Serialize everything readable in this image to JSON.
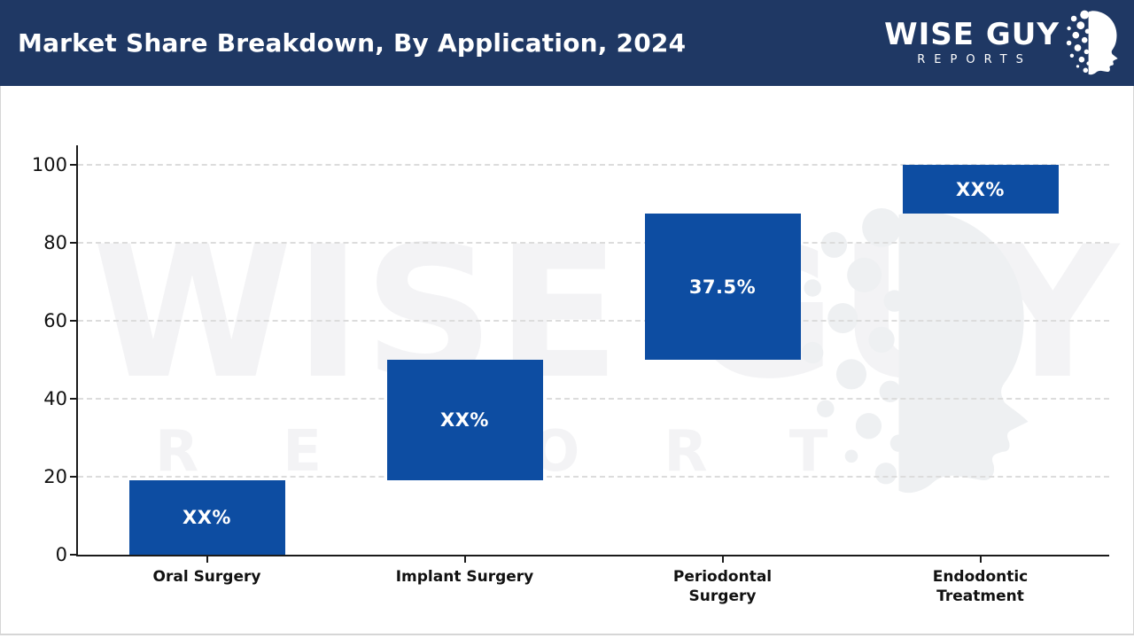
{
  "header": {
    "title": "Market Share Breakdown, By Application, 2024",
    "brand": {
      "line1": "WISE GUY",
      "line2": "REPORTS"
    }
  },
  "watermark": {
    "line1": "WISE GUY",
    "line2": "REPORTS"
  },
  "chart_data": {
    "type": "bar",
    "subtype": "waterfall-floating-bars",
    "title": "Market Share Breakdown, By Application, 2024",
    "xlabel": "",
    "ylabel": "",
    "categories": [
      "Oral Surgery",
      "Implant Surgery",
      "Periodontal Surgery",
      "Endodontic Treatment"
    ],
    "tick_label_lines": [
      [
        "Oral Surgery"
      ],
      [
        "Implant Surgery"
      ],
      [
        "Periodontal",
        "Surgery"
      ],
      [
        "Endodontic",
        "Treatment"
      ]
    ],
    "bars": [
      {
        "category": "Oral Surgery",
        "start": 0,
        "end": 19,
        "label": "XX%"
      },
      {
        "category": "Implant Surgery",
        "start": 19,
        "end": 50,
        "label": "XX%"
      },
      {
        "category": "Periodontal Surgery",
        "start": 50,
        "end": 87.5,
        "label": "37.5%",
        "value": 37.5
      },
      {
        "category": "Endodontic Treatment",
        "start": 87.5,
        "end": 100,
        "label": "XX%"
      }
    ],
    "yticks": [
      0,
      20,
      40,
      60,
      80,
      100
    ],
    "ylim": [
      0,
      105
    ],
    "grid": "horizontal-dashed",
    "legend": "none",
    "bar_color": "#0d4da2",
    "bar_label_color": "#ffffff"
  },
  "colors": {
    "header_bg": "#1f3864",
    "bar": "#0d4da2",
    "grid": "#dcdcdc",
    "axis": "#1a1a1a",
    "watermark": "#f3f3f5",
    "frame": "#d6d6d6"
  }
}
